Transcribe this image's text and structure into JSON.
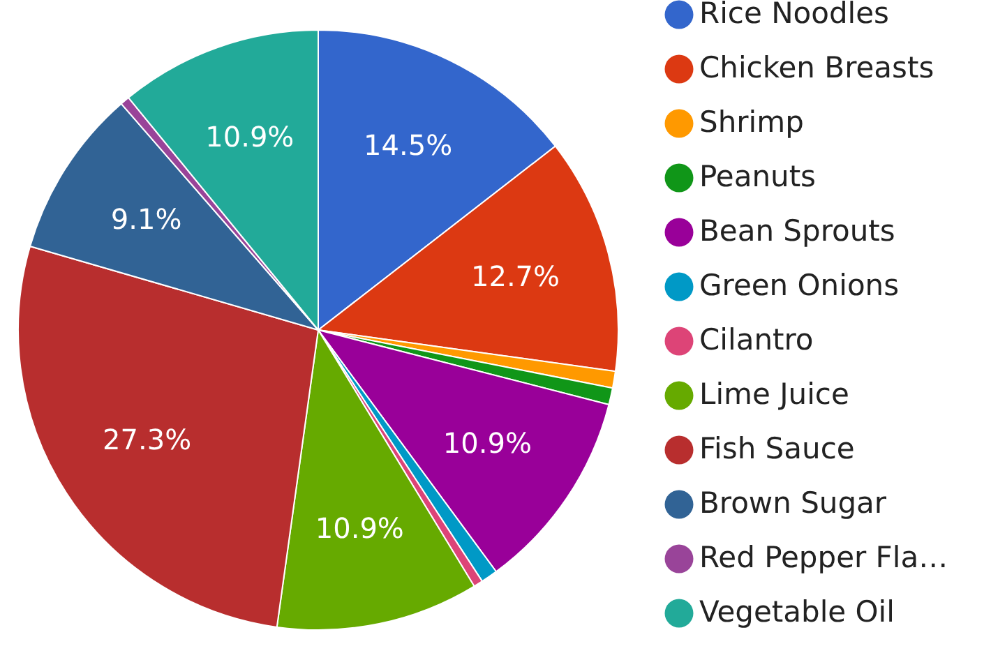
{
  "chart_data": {
    "type": "pie",
    "categories": [
      "Rice Noodles",
      "Chicken Breasts",
      "Shrimp",
      "Peanuts",
      "Bean Sprouts",
      "Green Onions",
      "Cilantro",
      "Lime Juice",
      "Fish Sauce",
      "Brown Sugar",
      "Red Pepper Fla…",
      "Vegetable Oil"
    ],
    "values": [
      14.5,
      12.7,
      0.9,
      0.9,
      10.9,
      0.9,
      0.5,
      10.9,
      27.3,
      9.1,
      0.5,
      10.9
    ],
    "colors": [
      "#3366cc",
      "#dc3912",
      "#ff9900",
      "#109618",
      "#990099",
      "#0099c6",
      "#dd4477",
      "#66aa00",
      "#b82e2e",
      "#316395",
      "#994499",
      "#22aa99"
    ],
    "value_labels": [
      "14.5%",
      "12.7%",
      null,
      null,
      "10.9%",
      null,
      null,
      "10.9%",
      "27.3%",
      "9.1%",
      null,
      "10.9%"
    ],
    "legend": "right"
  }
}
